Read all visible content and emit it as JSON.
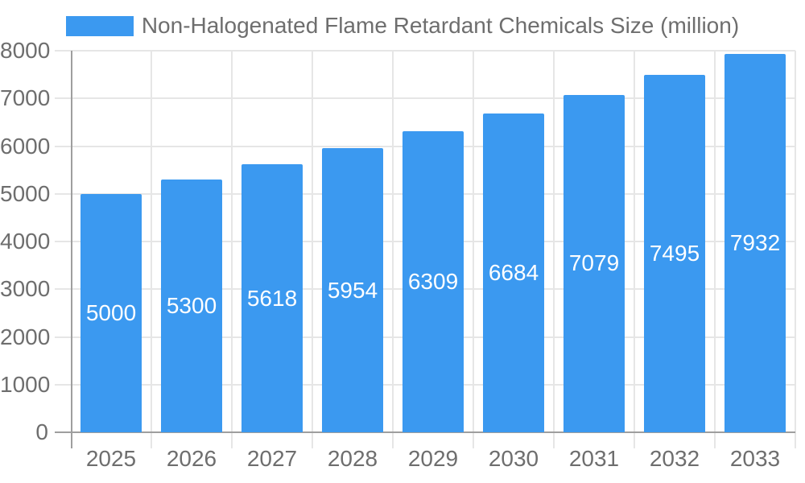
{
  "legend": {
    "label": "Non-Halogenated Flame Retardant Chemicals Size (million)"
  },
  "chart_data": {
    "type": "bar",
    "title": "Non-Halogenated Flame Retardant Chemicals Size (million)",
    "series_name": "Non-Halogenated Flame Retardant Chemicals Size (million)",
    "categories": [
      "2025",
      "2026",
      "2027",
      "2028",
      "2029",
      "2030",
      "2031",
      "2032",
      "2033"
    ],
    "values": [
      5000,
      5300,
      5618,
      5954,
      6309,
      6684,
      7079,
      7495,
      7932
    ],
    "xlabel": "",
    "ylabel": "",
    "ylim": [
      0,
      8000
    ],
    "yticks": [
      0,
      1000,
      2000,
      3000,
      4000,
      5000,
      6000,
      7000,
      8000
    ],
    "grid": true,
    "legend_position": "top-center",
    "value_labels_position": "inside-center"
  },
  "colors": {
    "bar": "#3B99F0",
    "grid_line": "#E6E6E6",
    "axis_line": "#9E9E9E",
    "tick_label": "#6E6E6E",
    "value_label": "#FFFFFF",
    "background": "#FFFFFF"
  }
}
